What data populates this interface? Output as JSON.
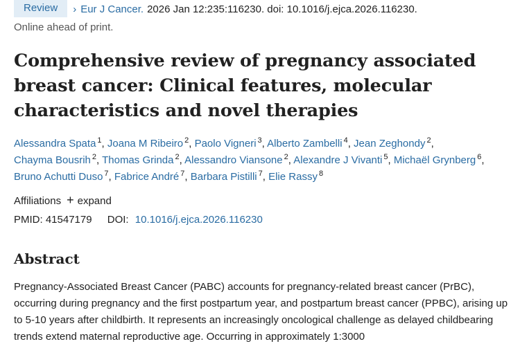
{
  "header": {
    "badge": "Review",
    "journal": "Eur J Cancer.",
    "citation": "2026 Jan 12:235:116230. doi: 10.1016/j.ejca.2026.116230.",
    "status": "Online ahead of print."
  },
  "title": "Comprehensive review of pregnancy associated breast cancer: Clinical features, molecular characteristics and novel therapies",
  "authors": [
    {
      "name": "Alessandra Spata",
      "aff": "1"
    },
    {
      "name": "Joana M Ribeiro",
      "aff": "2"
    },
    {
      "name": "Paolo Vigneri",
      "aff": "3"
    },
    {
      "name": "Alberto Zambelli",
      "aff": "4"
    },
    {
      "name": "Jean Zeghondy",
      "aff": "2"
    },
    {
      "name": "Chayma Bousrih",
      "aff": "2"
    },
    {
      "name": "Thomas Grinda",
      "aff": "2"
    },
    {
      "name": "Alessandro Viansone",
      "aff": "2"
    },
    {
      "name": "Alexandre J Vivanti",
      "aff": "5"
    },
    {
      "name": "Michaël Grynberg",
      "aff": "6"
    },
    {
      "name": "Bruno Achutti Duso",
      "aff": "7"
    },
    {
      "name": "Fabrice André",
      "aff": "7"
    },
    {
      "name": "Barbara Pistilli",
      "aff": "7"
    },
    {
      "name": "Elie Rassy",
      "aff": "8"
    }
  ],
  "affiliations": {
    "label": "Affiliations",
    "icon": "plus-icon",
    "expand_label": "expand"
  },
  "ids": {
    "pmid_label": "PMID:",
    "pmid": "41547179",
    "doi_label": "DOI:",
    "doi": "10.1016/j.ejca.2026.116230"
  },
  "abstract": {
    "heading": "Abstract",
    "text": "Pregnancy-Associated Breast Cancer (PABC) accounts for pregnancy-related breast cancer (PrBC), occurring during pregnancy and the first postpartum year, and postpartum breast cancer (PPBC), arising up to 5-10 years after childbirth. It represents an increasingly oncological challenge as delayed childbearing trends extend maternal reproductive age. Occurring in approximately 1:3000"
  },
  "colors": {
    "link": "#2a6ca3",
    "badge_bg": "#e2edf6",
    "text": "#212121"
  }
}
